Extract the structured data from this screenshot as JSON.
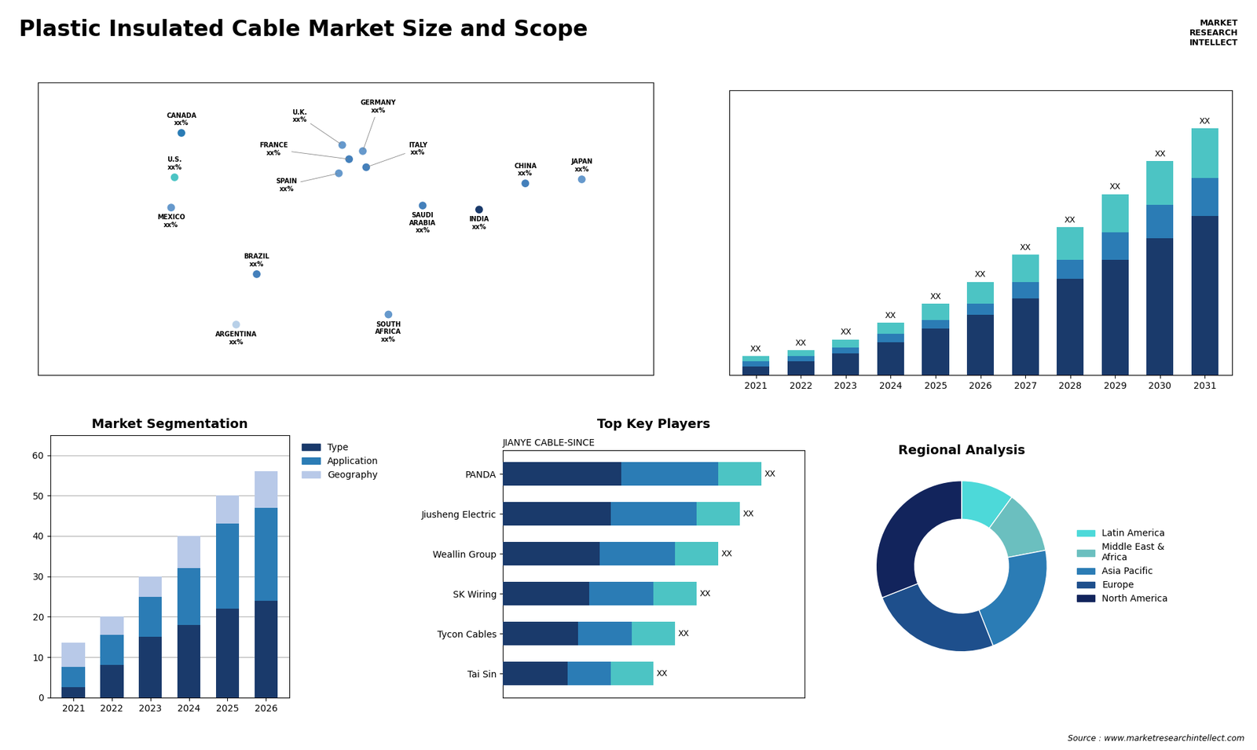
{
  "title": "Plastic Insulated Cable Market Size and Scope",
  "annotations": [
    "Source : www.marketresearchintellect.com",
    "MARKET\nRESEARCH\nINTELLECT"
  ],
  "chart_data": [
    {
      "type": "scatter",
      "x": [
        -100,
        -96,
        -102,
        -52,
        -64,
        -2,
        2,
        -4,
        10,
        12,
        45,
        25,
        78,
        105,
        138
      ],
      "values": [
        38,
        60,
        23,
        -10,
        -35,
        54,
        47,
        40,
        51,
        43,
        24,
        -30,
        22,
        35,
        37
      ],
      "labels": [
        "U.S.\nxx%",
        "CANADA\nxx%",
        "MEXICO\nxx%",
        "BRAZIL\nxx%",
        "ARGENTINA\nxx%",
        "U.K.\nxx%",
        "FRANCE\nxx%",
        "SPAIN\nxx%",
        "GERMANY\nxx%",
        "ITALY\nxx%",
        "SAUDI\nARABIA\nxx%",
        "SOUTH\nAFRICA\nxx%",
        "INDIA\nxx%",
        "CHINA\nxx%",
        "JAPAN\nxx%"
      ],
      "colors": [
        "#4cc4c4",
        "#2b7cb5",
        "#6699cc",
        "#4480bb",
        "#b8d0e8",
        "#6699cc",
        "#4480bb",
        "#6699cc",
        "#6699cc",
        "#4480bb",
        "#4480bb",
        "#6699cc",
        "#1a3a6b",
        "#4480bb",
        "#6699cc"
      ],
      "xlim": [
        -180,
        180
      ],
      "ylim": [
        -60,
        85
      ],
      "tick_labels": false
    },
    {
      "type": "bar",
      "stacked": true,
      "categories": [
        "2021",
        "2022",
        "2023",
        "2024",
        "2025",
        "2026",
        "2027",
        "2028",
        "2029",
        "2030",
        "2031"
      ],
      "series": [
        {
          "color": "#1a3a6b",
          "values": [
            1.5,
            2.5,
            4,
            6,
            8.5,
            11,
            14,
            17.5,
            21,
            25,
            29
          ]
        },
        {
          "color": "#2b7cb5",
          "values": [
            1,
            1,
            1,
            1.5,
            1.5,
            2,
            3,
            3.5,
            5,
            6,
            7
          ]
        },
        {
          "color": "#4cc4c4",
          "values": [
            1,
            1,
            1.5,
            2,
            3,
            4,
            5,
            6,
            7,
            8,
            9
          ]
        }
      ],
      "total_labels": [
        "XX",
        "XX",
        "XX",
        "XX",
        "XX",
        "XX",
        "XX",
        "XX",
        "XX",
        "XX",
        "XX"
      ],
      "ylim": [
        0,
        52
      ],
      "tick_labels": "x"
    },
    {
      "type": "bar",
      "stacked": true,
      "title": "Market Segmentation",
      "categories": [
        "2021",
        "2022",
        "2023",
        "2024",
        "2025",
        "2026"
      ],
      "series": [
        {
          "name": "Type",
          "color": "#1a3a6b",
          "values": [
            2.5,
            8,
            15,
            18,
            22,
            24
          ]
        },
        {
          "name": "Application",
          "color": "#2b7cb5",
          "values": [
            5,
            7.5,
            10,
            14,
            21,
            23
          ]
        },
        {
          "name": "Geography",
          "color": "#b8c9e8",
          "values": [
            6,
            4.5,
            5,
            8,
            7,
            9
          ]
        }
      ],
      "ylim": [
        0,
        65
      ],
      "yticks": [
        0,
        10,
        20,
        30,
        40,
        50,
        60
      ],
      "grid": true,
      "legend": "upper left"
    },
    {
      "type": "bar",
      "stacked": true,
      "orientation": "horizontal",
      "title": "Top Key Players",
      "subtitle": "JIANYE CABLE-SINCE",
      "categories": [
        "Tai Sin",
        "Tycon Cables",
        "SK Wiring",
        "Weallin Group",
        "Jiusheng Electric",
        "PANDA"
      ],
      "series": [
        {
          "color": "#1a3a6b",
          "values": [
            3,
            3.5,
            4,
            4.5,
            5,
            5.5
          ]
        },
        {
          "color": "#2b7cb5",
          "values": [
            2,
            2.5,
            3,
            3.5,
            4,
            4.5
          ]
        },
        {
          "color": "#4cc4c4",
          "values": [
            2,
            2,
            2,
            2,
            2,
            2
          ]
        }
      ],
      "total_labels": [
        "XX",
        "XX",
        "XX",
        "XX",
        "XX",
        "XX"
      ],
      "xlim": [
        0,
        14
      ],
      "tick_labels": "y"
    },
    {
      "type": "donut",
      "title": "Regional Analysis",
      "categories": [
        "Latin America",
        "Middle East &\nAfrica",
        "Asia Pacific",
        "Europe",
        "North America"
      ],
      "values": [
        10,
        12,
        22,
        25,
        31
      ],
      "colors": [
        "#4dd9d9",
        "#6bbfbf",
        "#2b7cb5",
        "#1e4f8c",
        "#12245c"
      ],
      "legend": "center left"
    }
  ]
}
